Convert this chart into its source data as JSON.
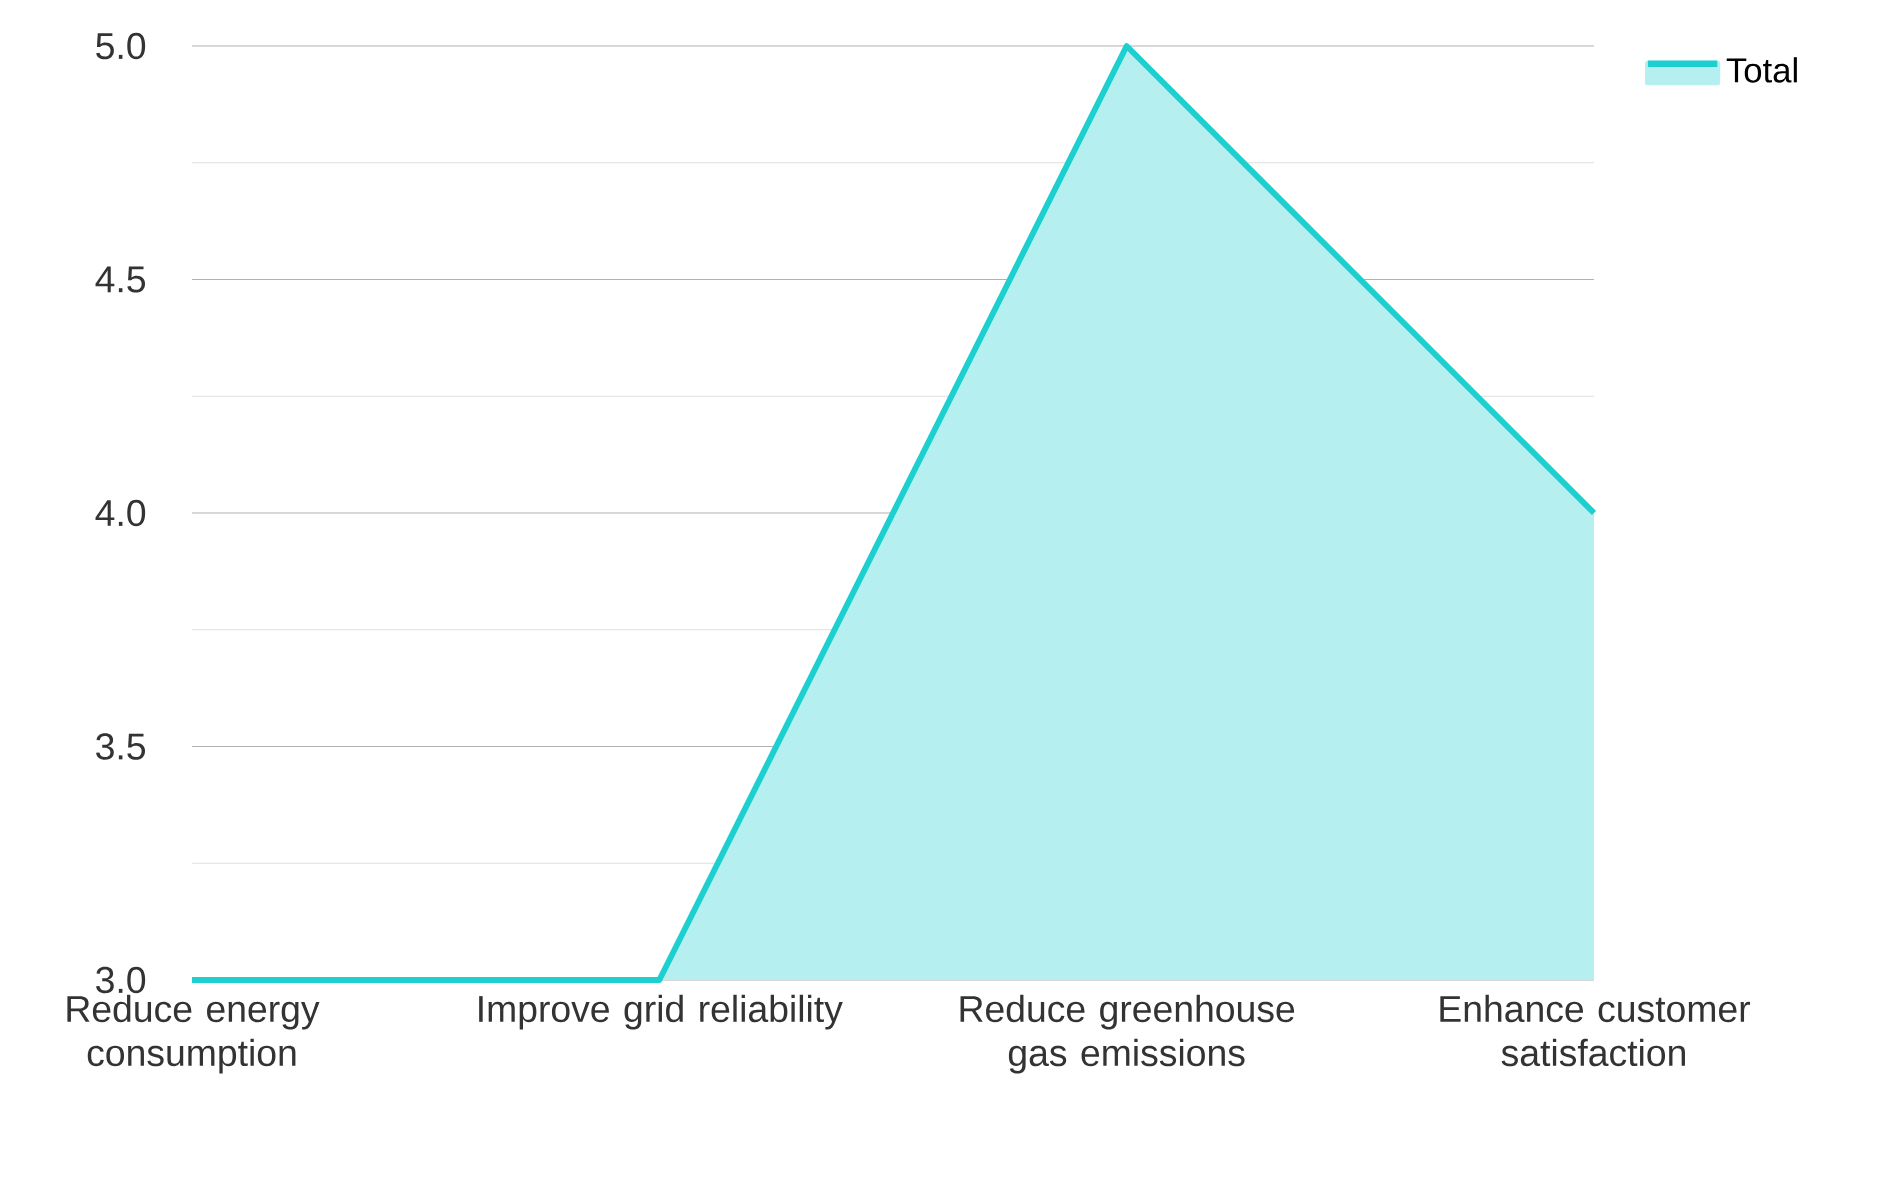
{
  "chart_data": {
    "type": "area",
    "categories": [
      "Reduce energy consumption",
      "Improve grid reliability",
      "Reduce greenhouse gas emissions",
      "Enhance customer satisfaction"
    ],
    "series": [
      {
        "name": "Total",
        "color": "#1ecfcf",
        "values": [
          3,
          3,
          5,
          4
        ]
      }
    ],
    "ylim": [
      3,
      5
    ],
    "yticks": [
      {
        "value": 3,
        "label": "3.0"
      },
      {
        "value": 3.25,
        "label": null
      },
      {
        "value": 3.5,
        "label": "3.5"
      },
      {
        "value": 3.75,
        "label": null
      },
      {
        "value": 4,
        "label": "4.0"
      },
      {
        "value": 4.25,
        "label": null
      },
      {
        "value": 4.5,
        "label": "4.5"
      },
      {
        "value": 4.75,
        "label": null
      },
      {
        "value": 5,
        "label": "5.0"
      }
    ],
    "grid": "y",
    "legend": "top right"
  }
}
